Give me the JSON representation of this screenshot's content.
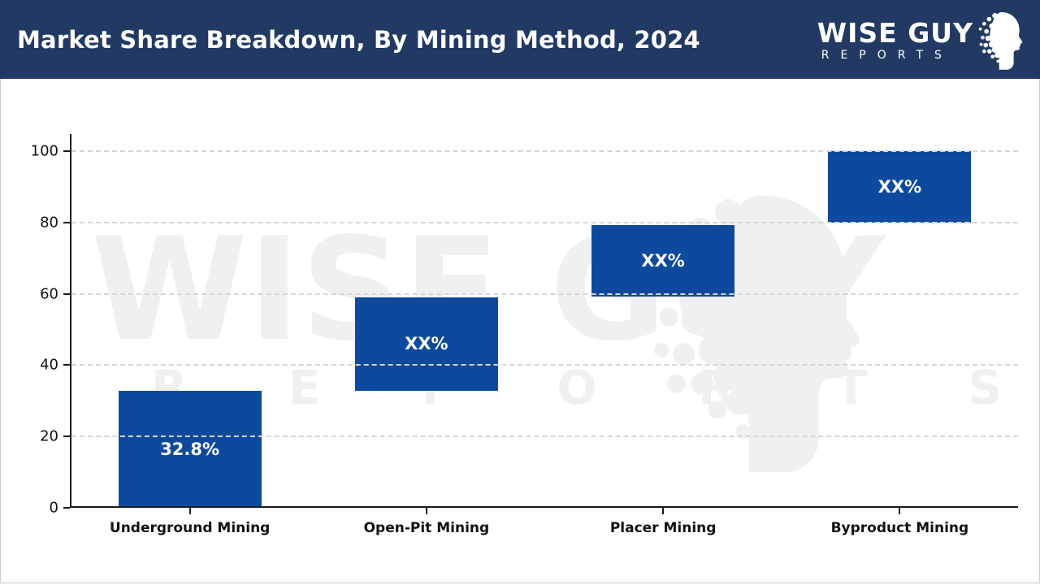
{
  "header": {
    "title": "Market Share Breakdown, By Mining Method, 2024",
    "logo": {
      "line1": "WISE GUY",
      "line2": "REPORTS"
    }
  },
  "watermark": {
    "line1": "WISE GUY",
    "line2": "R E P O R T S"
  },
  "chart_data": {
    "type": "bar",
    "variant": "waterfall",
    "title": "Market Share Breakdown, By Mining Method, 2024",
    "categories": [
      "Underground Mining",
      "Open-Pit Mining",
      "Placer Mining",
      "Byproduct Mining"
    ],
    "bars": [
      {
        "category": "Underground Mining",
        "start": 0,
        "end": 32.8,
        "label": "32.8%"
      },
      {
        "category": "Open-Pit Mining",
        "start": 32.8,
        "end": 59,
        "label": "XX%"
      },
      {
        "category": "Placer Mining",
        "start": 59.2,
        "end": 79.3,
        "label": "XX%"
      },
      {
        "category": "Byproduct Mining",
        "start": 79.9,
        "end": 100,
        "label": "XX%"
      }
    ],
    "ylim": [
      0,
      100
    ],
    "yticks": [
      0,
      20,
      40,
      60,
      80,
      100
    ],
    "xlabel": "",
    "ylabel": "",
    "grid": "horizontal-dashed-over-bars",
    "legend": "none"
  },
  "colors": {
    "header_bg": "#223a63",
    "bar_fill": "#0d4a9e",
    "bar_label": "#ffffff",
    "grid": "#d6d6d6",
    "axis": "#1a1a1a",
    "wm": "#f0f0f2",
    "text_dark": "#111111",
    "border": "#c9cdd1"
  }
}
